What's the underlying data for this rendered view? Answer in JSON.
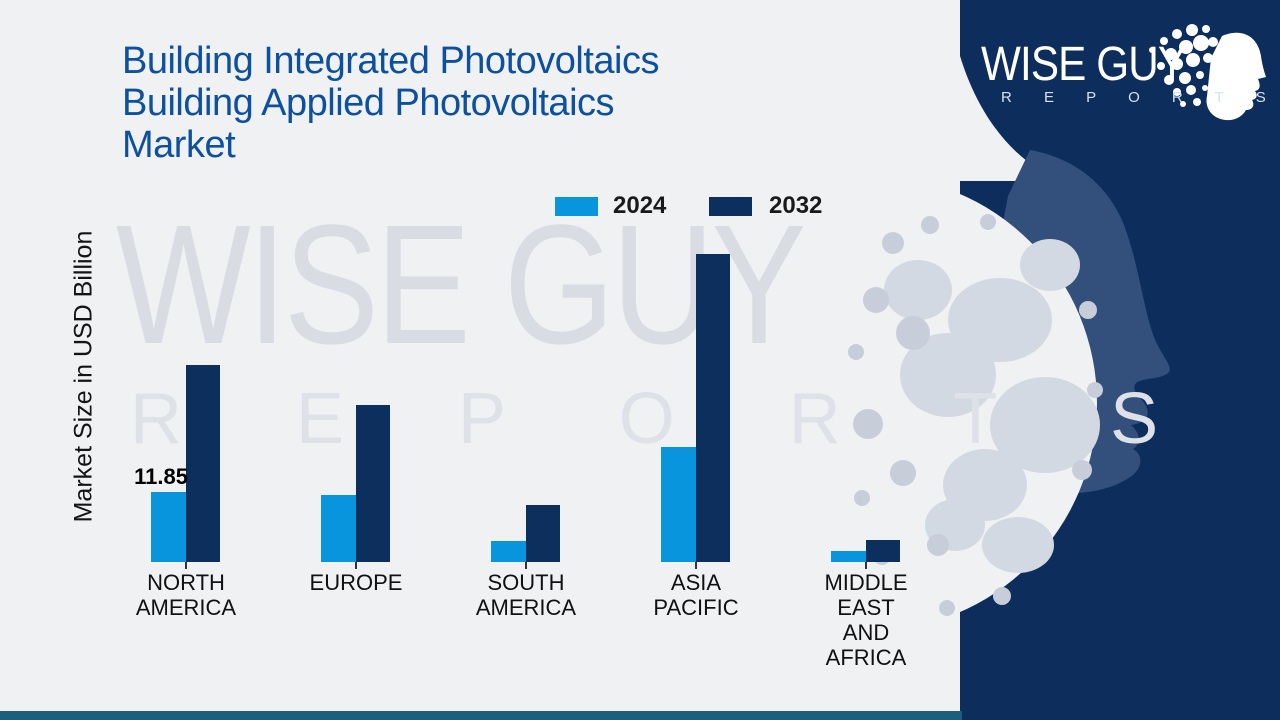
{
  "page": {
    "background": "#f0f1f3",
    "panel_color": "#0d2e5c",
    "silhouette_color": "#33507c",
    "teal_bar_color": "#1a607e",
    "watermark_color": "#d9dce3"
  },
  "title": {
    "text": "Building Integrated Photovoltaics Building Applied Photovoltaics Market",
    "lines": "Building Integrated Photovoltaics\nBuilding Applied Photovoltaics\nMarket",
    "color": "#0d509f"
  },
  "y_axis_label": "Market Size in USD Billion",
  "watermark": {
    "line1": "WISE GUY",
    "line2": "R E P O R T S"
  },
  "brand_logo": {
    "line1": "WISE GUY",
    "line2": "R E P O R T S"
  },
  "legend": {
    "items": [
      {
        "label": "2024",
        "color": "#0995dd"
      },
      {
        "label": "2032",
        "color": "#0d2f5e"
      }
    ]
  },
  "chart_data": {
    "type": "bar",
    "title": "Building Integrated Photovoltaics Building Applied Photovoltaics Market",
    "xlabel": "",
    "ylabel": "Market Size in USD Billion",
    "unit": "USD Billion",
    "categories": [
      "NORTH AMERICA",
      "EUROPE",
      "SOUTH AMERICA",
      "ASIA PACIFIC",
      "MIDDLE EAST AND AFRICA"
    ],
    "category_lines": [
      "NORTH\nAMERICA",
      "EUROPE",
      "SOUTH\nAMERICA",
      "ASIA\nPACIFIC",
      "MIDDLE\nEAST\nAND\nAFRICA"
    ],
    "series": [
      {
        "name": "2024",
        "color": "#0995dd",
        "values": [
          11.85,
          11.3,
          3.6,
          19.5,
          1.9
        ]
      },
      {
        "name": "2032",
        "color": "#0d2f5e",
        "values": [
          33.4,
          26.6,
          9.7,
          52.1,
          3.7
        ]
      }
    ],
    "data_labels": [
      {
        "series_index": 0,
        "category_index": 0,
        "text": "11.85"
      }
    ],
    "ylim": [
      0,
      55
    ],
    "grid": false,
    "legend_position": "top"
  }
}
